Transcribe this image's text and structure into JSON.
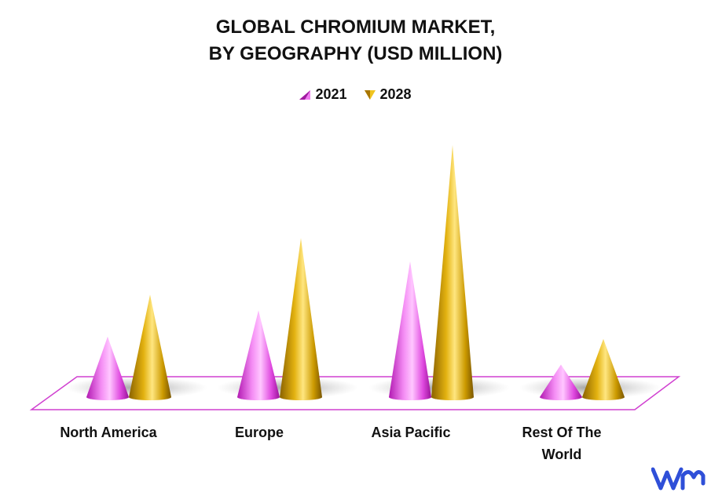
{
  "chart_data": {
    "type": "bar",
    "title_lines": [
      "GLOBAL CHROMIUM MARKET,",
      "BY GEOGRAPHY (USD MILLION)"
    ],
    "categories": [
      [
        "North America"
      ],
      [
        "Europe"
      ],
      [
        "Asia Pacific"
      ],
      [
        "Rest Of The",
        "World"
      ]
    ],
    "series": [
      {
        "name": "2021",
        "color": "#e040e0",
        "values": [
          78,
          112,
          175,
          42
        ]
      },
      {
        "name": "2028",
        "color": "#d4a000",
        "values": [
          132,
          205,
          325,
          75
        ]
      }
    ],
    "ylim": [
      0,
      340
    ],
    "legend_position": "top-center",
    "grid": false,
    "shape": "cone-3d",
    "floor_color": "#d040d0"
  },
  "logo": {
    "icon": "vmr-logo-icon",
    "color": "#2f4fd8"
  }
}
